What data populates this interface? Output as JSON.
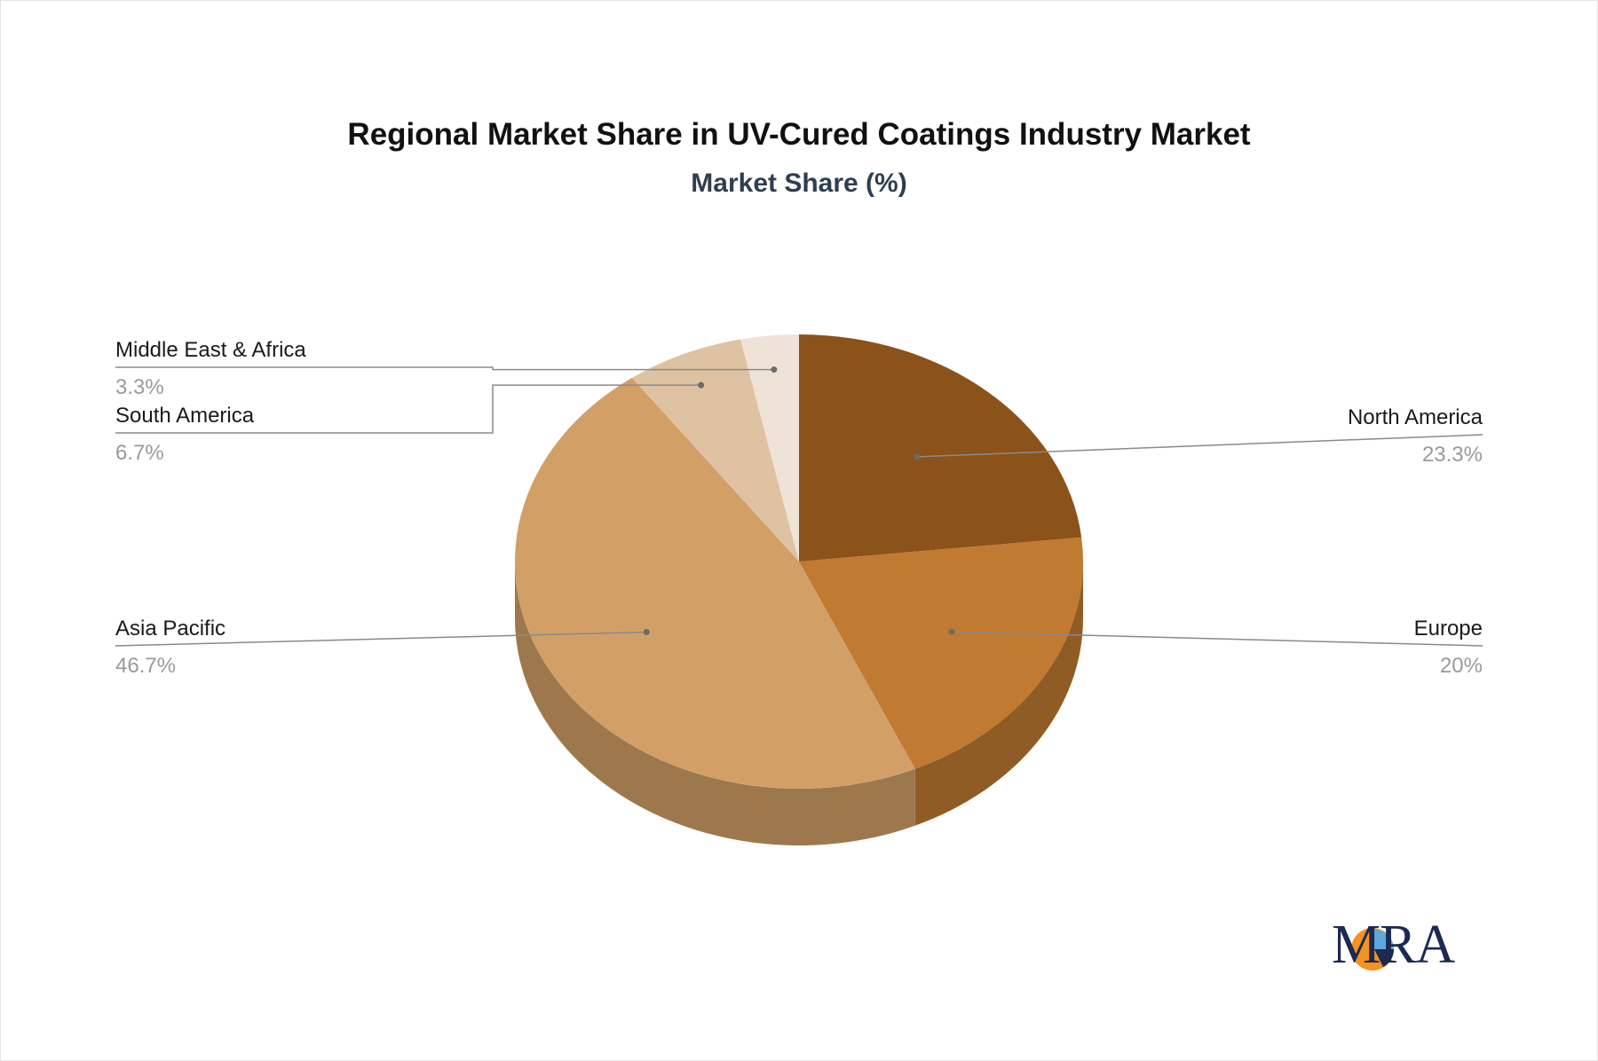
{
  "chart_data": {
    "type": "pie",
    "title": "Regional Market Share in UV-Cured Coatings Industry Market",
    "subtitle": "Market Share (%)",
    "slices": [
      {
        "label": "North America",
        "value": 23.3,
        "display": "23.3%",
        "color": "#8b5219"
      },
      {
        "label": "Europe",
        "value": 20,
        "display": "20%",
        "color": "#c07a31"
      },
      {
        "label": "Asia Pacific",
        "value": 46.7,
        "display": "46.7%",
        "color": "#d2a067"
      },
      {
        "label": "South America",
        "value": 6.7,
        "display": "6.7%",
        "color": "#dfc2a2"
      },
      {
        "label": "Middle East & Africa",
        "value": 3.3,
        "display": "3.3%",
        "color": "#efe3d8"
      }
    ]
  },
  "logo": {
    "text": "MRA",
    "colors": {
      "orange": "#f39322",
      "navy": "#1c2951",
      "blue": "#5da9dd"
    }
  }
}
